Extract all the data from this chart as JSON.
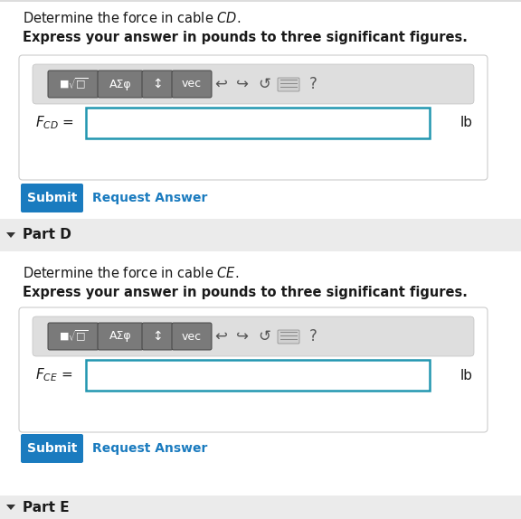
{
  "bg_top": "#f5f5f5",
  "bg_white": "#ffffff",
  "bg_gray_header": "#ebebeb",
  "bg_toolbar": "#e0e0e0",
  "btn_gray": "#7a7a7a",
  "btn_border": "#555555",
  "input_border_blue": "#2196b0",
  "submit_blue": "#1a7bbf",
  "link_blue": "#1a7bbf",
  "text_black": "#1a1a1a",
  "border_light": "#cccccc",
  "arrow_dark": "#333333",
  "icon_dark": "#555555",
  "line_cd": "Determine the force in cable $CD$.",
  "bold_cd": "Express your answer in pounds to three significant figures.",
  "label_cd": "$F_{CD}$",
  "line_ce": "Determine the force in cable $CE$.",
  "bold_ce": "Express your answer in pounds to three significant figures.",
  "label_ce": "$F_{CE}$",
  "unit": "lb",
  "submit": "Submit",
  "request": "Request Answer",
  "part_d": "Part D",
  "part_e": "Part E",
  "figw": 5.76,
  "figh": 5.74,
  "dpi": 100
}
